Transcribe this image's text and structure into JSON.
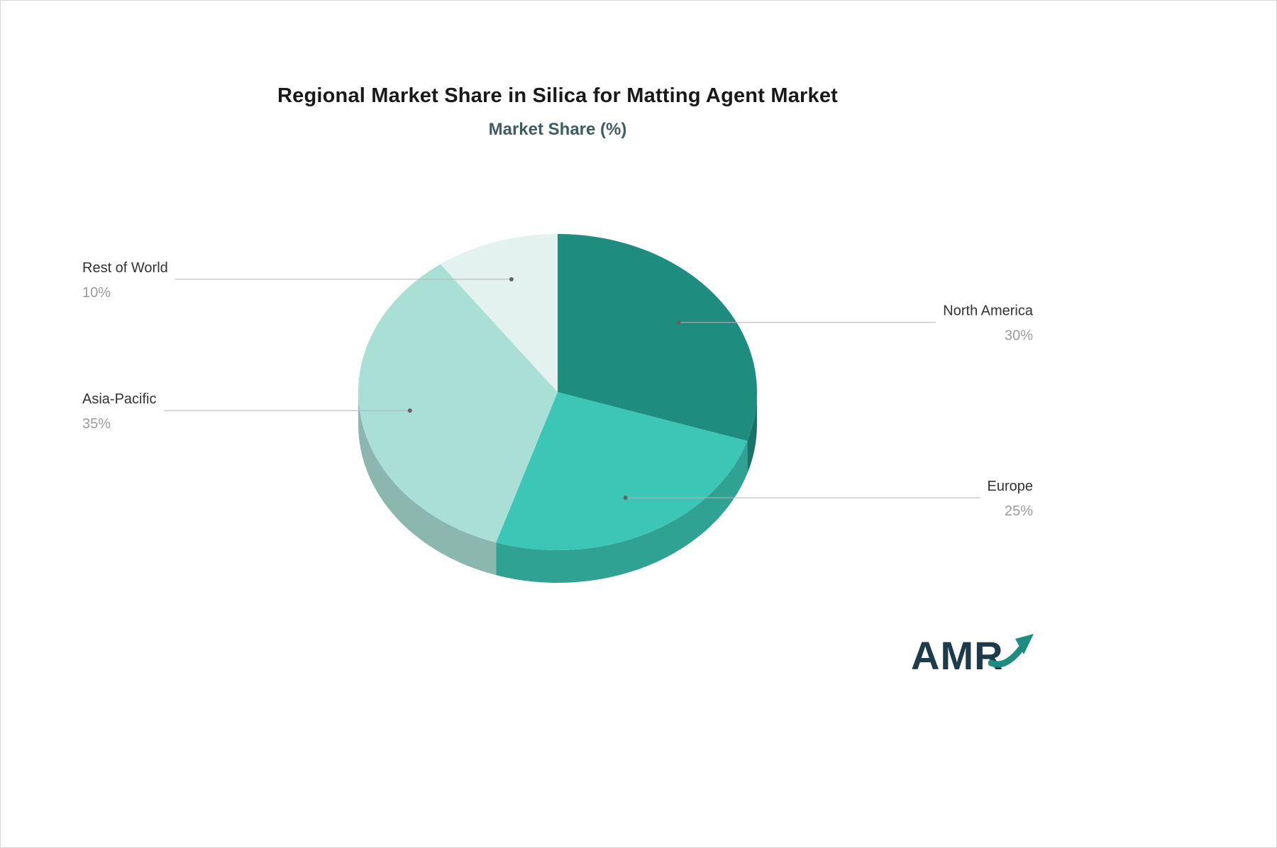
{
  "title": "Regional Market Share in Silica for Matting Agent Market",
  "subtitle": "Market Share (%)",
  "logo": {
    "text": "AMR"
  },
  "chart_data": {
    "type": "pie",
    "title": "Regional Market Share in Silica for Matting Agent Market",
    "subtitle": "Market Share (%)",
    "start_angle_deg": 0,
    "direction": "clockwise",
    "value_suffix": "%",
    "labels_outside": true,
    "effect": "3d",
    "slices": [
      {
        "label": "North America",
        "value": 30,
        "color": "#1f8c80",
        "side": "right"
      },
      {
        "label": "Europe",
        "value": 25,
        "color": "#3bc6b5",
        "side": "right"
      },
      {
        "label": "Asia-Pacific",
        "value": 35,
        "color": "#aadfd6",
        "side": "left"
      },
      {
        "label": "Rest of World",
        "value": 10,
        "color": "#e3f2ee",
        "side": "left"
      }
    ],
    "label_text_color": "#323232",
    "value_text_color": "#9b9b9b",
    "leader_line_color": "#b3b3b3",
    "leader_dot_color": "#636363"
  }
}
